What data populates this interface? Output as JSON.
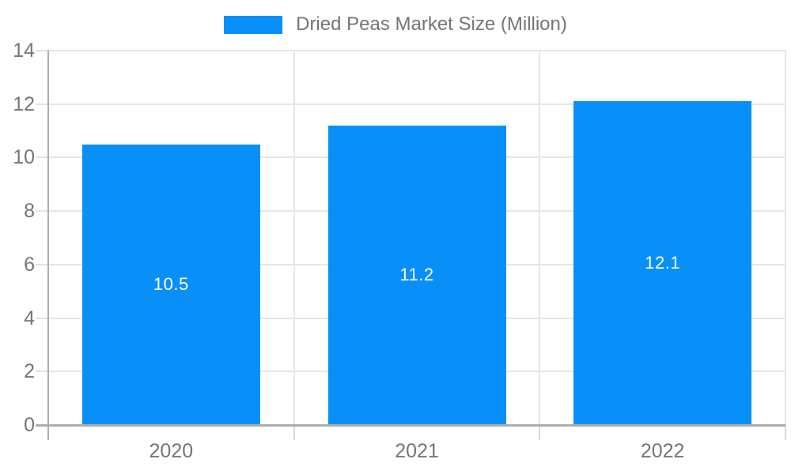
{
  "chart_data": {
    "type": "bar",
    "title": "Dried Peas Market Size (Million)",
    "categories": [
      "2020",
      "2021",
      "2022"
    ],
    "series": [
      {
        "name": "Dried Peas Market Size (Million)",
        "values": [
          10.5,
          11.2,
          12.1
        ]
      }
    ],
    "data_labels": [
      "10.5",
      "11.2",
      "12.1"
    ],
    "xlabel": "",
    "ylabel": "",
    "ylim": [
      0,
      14
    ],
    "yticks": [
      0,
      2,
      4,
      6,
      8,
      10,
      12,
      14
    ],
    "grid": true,
    "legend_position": "top",
    "colors": {
      "bar": "#0990F8",
      "grid": "#E6E6E6",
      "axis": "#ADADAD",
      "y_tick": "#E3E3E3",
      "x_tick": "#D6D6D6",
      "text": "#757575",
      "value_label": "#FFFFFF"
    }
  }
}
